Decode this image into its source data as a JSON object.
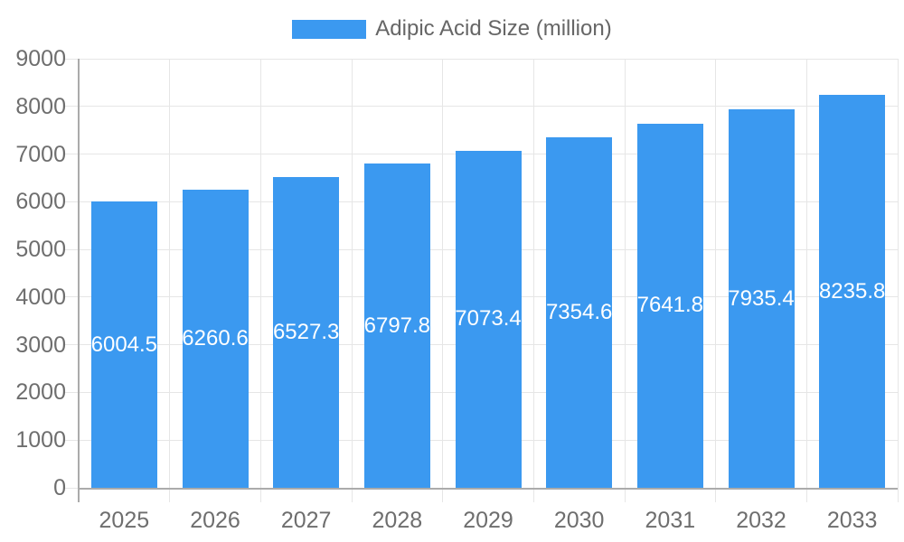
{
  "legend": {
    "label": "Adipic Acid Size (million)"
  },
  "colors": {
    "bar": "#3B99F0",
    "grid": "#E6E6E6",
    "axis": "#ABABAB",
    "axis_text": "#6E6E6E",
    "legend_text": "#666666",
    "bar_label": "#FFFFFF",
    "background": "#FFFFFF"
  },
  "chart_data": {
    "type": "bar",
    "title": "",
    "categories": [
      "2025",
      "2026",
      "2027",
      "2028",
      "2029",
      "2030",
      "2031",
      "2032",
      "2033"
    ],
    "series": [
      {
        "name": "Adipic Acid Size (million)",
        "values": [
          6004.5,
          6260.6,
          6527.3,
          6797.8,
          7073.4,
          7354.6,
          7641.8,
          7935.4,
          8235.8
        ]
      }
    ],
    "xlabel": "",
    "ylabel": "",
    "ylim": [
      0,
      9000
    ],
    "yticks": [
      0,
      1000,
      2000,
      3000,
      4000,
      5000,
      6000,
      7000,
      8000,
      9000
    ],
    "grid": true,
    "legend_position": "top",
    "bar_value_labels": "inside-center"
  }
}
